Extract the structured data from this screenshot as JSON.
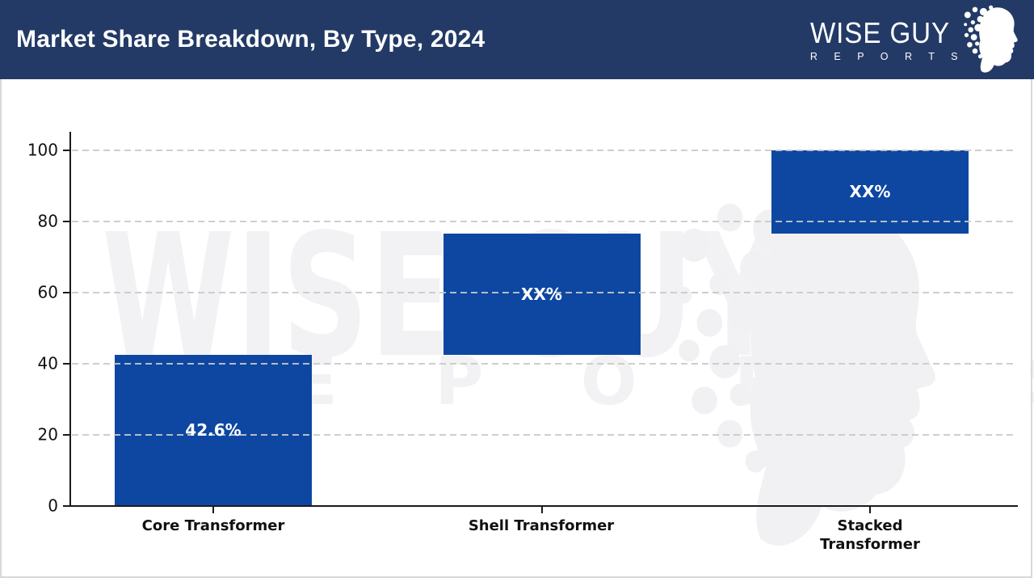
{
  "header": {
    "title": "Market Share Breakdown, By Type, 2024",
    "logo": {
      "name": "WISE GUY",
      "subtitle": "R E P O R T S"
    }
  },
  "watermark": {
    "name": "WISE GUY",
    "subtitle": "R E P O R T S"
  },
  "colors": {
    "header_bg": "#233a66",
    "title_text": "#ffffff",
    "bar_fill": "#0d47a1",
    "bar_label": "#ffffff",
    "grid_line": "#c9c9c9",
    "axis_line": "#1a1a1a",
    "tick_text": "#111111",
    "watermark_text": "#f2f2f4",
    "page_border": "#d8d8d8"
  },
  "chart_data": {
    "type": "bar",
    "subtype": "waterfall-breakdown",
    "title": "Market Share Breakdown, By Type, 2024",
    "categories": [
      "Core Transformer",
      "Shell Transformer",
      "Stacked Transformer"
    ],
    "series": [
      {
        "name": "Market share (%)",
        "segments": [
          {
            "category": "Core Transformer",
            "start": 0,
            "end": 42.6,
            "label": "42.6%"
          },
          {
            "category": "Shell Transformer",
            "start": 42.6,
            "end": 76.6,
            "label": "XX%"
          },
          {
            "category": "Stacked Transformer",
            "start": 76.6,
            "end": 100,
            "label": "XX%"
          }
        ]
      }
    ],
    "yticks": [
      0,
      20,
      40,
      60,
      80,
      100
    ],
    "ylim": [
      0,
      105
    ],
    "xlabel": "",
    "ylabel": "",
    "grid": "horizontal-dashed",
    "legend": "none"
  }
}
